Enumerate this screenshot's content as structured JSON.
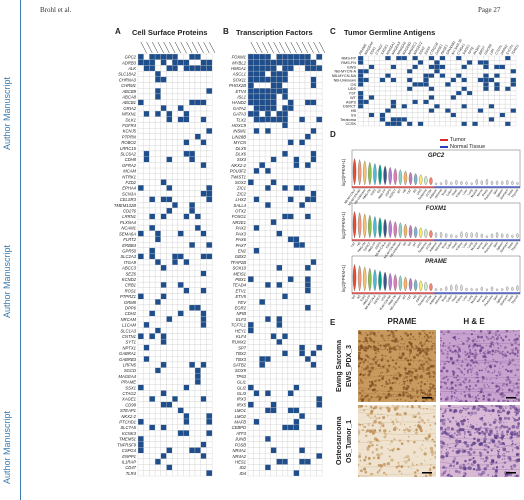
{
  "header": {
    "author": "Brohl et al.",
    "page": "Page 27"
  },
  "side_labels": [
    "Author Manuscript",
    "Author Manuscript",
    "Author Manuscript"
  ],
  "panels": {
    "a": {
      "label": "A",
      "title": "Cell Surface Proteins",
      "genes": [
        "GPC2",
        "ADRB3",
        "ALK",
        "SLC18A2",
        "CHRNA3",
        "CHRM1",
        "ABCB9",
        "ABCA8",
        "ABCB1",
        "GRIA2",
        "NRXN1",
        "DLK1",
        "FGFR4",
        "KCNJ5",
        "PTPRN",
        "ROBO2",
        "LRRC15",
        "SLC6A2",
        "CDH8",
        "GFRA2",
        "MCAM",
        "NTRK1",
        "FZD2",
        "EPHA4",
        "SCN3A",
        "CELSR3",
        "TMEM132B",
        "CD276",
        "LRRN1",
        "PLXNA4",
        "NCAM1",
        "SEMA6A",
        "FLRT2",
        "ERBB4",
        "GPR50",
        "SLC2A3",
        "ITGA9",
        "ABCC3",
        "SEZ6",
        "KCND2",
        "CRB1",
        "ROS1",
        "PTPRZ1",
        "GRM8",
        "DPP6",
        "CDH2",
        "NRCAM",
        "L1CAM",
        "SLC1A3",
        "CNTN1",
        "SYT1",
        "NPTX1",
        "GABRA1",
        "GABRB3",
        "LRFN5",
        "SGCD",
        "MAGEA4",
        "PRAME",
        "SSX1",
        "CTAG2",
        "XAGE1",
        "CD99",
        "STEAP1",
        "NKX2-2",
        "PTCHD1",
        "SLC7A5",
        "KCNK3",
        "TMEM51",
        "TNFRSF9",
        "CSPG4",
        "ENPP1",
        "IL1RAP",
        "CD47",
        "TLR4"
      ]
    },
    "b": {
      "label": "B",
      "title": "Transcription Factors",
      "genes": [
        "FOXM1",
        "MYBL2",
        "HMGA1",
        "ASCL1",
        "SOX11",
        "PHOX2B",
        "ETV4",
        "ISL1",
        "HAND2",
        "GATA2",
        "GATA3",
        "TLX2",
        "HOXC9",
        "INSM1",
        "LIN28B",
        "MYCN",
        "DLX5",
        "DLX6",
        "SIX3",
        "NKX2-2",
        "POU3F2",
        "TWIST1",
        "SOX2",
        "ZIC1",
        "ZIC2",
        "LHX2",
        "SALL4",
        "OTX2",
        "FOXG1",
        "NR2E1",
        "PAX2",
        "PAX3",
        "PAX6",
        "PAX7",
        "EN2",
        "GBX2",
        "TFAP2B",
        "SOX10",
        "MEIS1",
        "PBX1",
        "TEAD4",
        "ETV1",
        "ETV5",
        "FEV",
        "EGR2",
        "NFIB",
        "ELF3",
        "TCF7L1",
        "HEY1",
        "KLF4",
        "RUNX2",
        "SP7",
        "TBX2",
        "TBX3",
        "SATB2",
        "SOX9",
        "TP63",
        "GLI1",
        "GLI2",
        "GLI3",
        "IRX3",
        "IRX5",
        "LMO1",
        "LMO2",
        "MAFB",
        "CEBPD",
        "ATF3",
        "JUNB",
        "FOSB",
        "NR4A1",
        "NR4A2",
        "HES1",
        "ID2",
        "ID4"
      ]
    },
    "c": {
      "label": "C",
      "title": "Tumor Germline Antigens",
      "genes": [
        "PRAME",
        "MAGEA4",
        "SSX1",
        "CTAG2",
        "XAGE1",
        "MAGEA1",
        "MAGEA3",
        "MAGEA6",
        "MAGEB2",
        "MAGEC1",
        "MAGEC2",
        "SSX2",
        "SSX4",
        "CTAG1B",
        "GAGE1",
        "PAGE1",
        "SPANXB1",
        "NY-SAR-35",
        "CT45A1",
        "SAGE1",
        "TPTE",
        "PASD1",
        "BRDT",
        "DSCR8",
        "LIPI",
        "CTCFL",
        "DPPA2",
        "SYCP1",
        "TDRD1"
      ],
      "rows": [
        "RMS-FP",
        "RMS-FN",
        "EWS",
        "NB-MYCN-A",
        "NB-MYCN-NA",
        "NB-Unknown",
        "OS",
        "UDS",
        "YST",
        "WT",
        "ASPS",
        "DSRCT",
        "HB",
        "SS",
        "Teratoma",
        "CCSK"
      ]
    },
    "d": {
      "label": "D",
      "legend": {
        "tumor": "Tumor",
        "normal": "Normal Tissue"
      },
      "ylabel": "log2(FPKM+1)",
      "plots": [
        {
          "title": "GPC2",
          "tumor": [
            "NB-MYCN-A",
            "NB-MYCN-NA",
            "NB-Unknown",
            "RMS-FN",
            "EWS",
            "OS",
            "RMS-FP",
            "ASPS",
            "DSRCT",
            "WT",
            "HB",
            "YST",
            "SS",
            "UDS",
            "Teratoma",
            "CCSK"
          ],
          "normal": [
            "Adipose",
            "Adrenal",
            "Brain",
            "Colon",
            "Heart",
            "Kidney",
            "Liver",
            "Lung",
            "Muscle",
            "Nerve",
            "Ovary",
            "Pancreas",
            "Skin",
            "Spleen",
            "Stomach",
            "Testis",
            "Thyroid"
          ]
        },
        {
          "title": "FOXM1",
          "tumor": [
            "YST",
            "HB",
            "RMS-FN",
            "DSRCT",
            "RMS-FP",
            "ASPS",
            "NB-MYCN-A",
            "EWS",
            "NB-MYCN-NA",
            "NB-Unknown",
            "SS",
            "OS",
            "WT",
            "UDS",
            "Teratoma",
            "CCSK"
          ],
          "normal": [
            "Adipose",
            "Adrenal",
            "Brain",
            "Colon",
            "Heart",
            "Kidney",
            "Liver",
            "Lung",
            "Muscle",
            "Nerve",
            "Ovary",
            "Pancreas",
            "Skin",
            "Spleen",
            "Stomach",
            "Testis",
            "Thyroid"
          ]
        },
        {
          "title": "PRAME",
          "tumor": [
            "OS",
            "SS",
            "EWS",
            "RMS-FP",
            "NB-MYCN-A",
            "DSRCT",
            "UDS",
            "NB-MYCN-NA",
            "RMS-FN",
            "NB-Unknown",
            "WT",
            "YST",
            "HB",
            "ASPS",
            "Teratoma",
            "CCSK"
          ],
          "normal": [
            "Adipose",
            "Adrenal",
            "Brain",
            "Colon",
            "Heart",
            "Kidney",
            "Liver",
            "Lung",
            "Muscle",
            "Nerve",
            "Ovary",
            "Pancreas",
            "Skin",
            "Spleen",
            "Stomach",
            "Testis",
            "Thyroid"
          ]
        }
      ]
    },
    "e": {
      "label": "E",
      "col_titles": [
        "PRAME",
        "H & E"
      ],
      "row_titles": [
        {
          "line1": "Ewing Sarcoma",
          "line2": "EWS_PDX_3"
        },
        {
          "line1": "Osteosarcoma",
          "line2": "OS_Tumor_1"
        }
      ]
    }
  },
  "colors": {
    "filled": "#1f4e8c",
    "empty": "#ffffff",
    "grid": "#c8c8c8",
    "tumor_line": "#d92b2b",
    "normal_line": "#2a3fbf"
  }
}
